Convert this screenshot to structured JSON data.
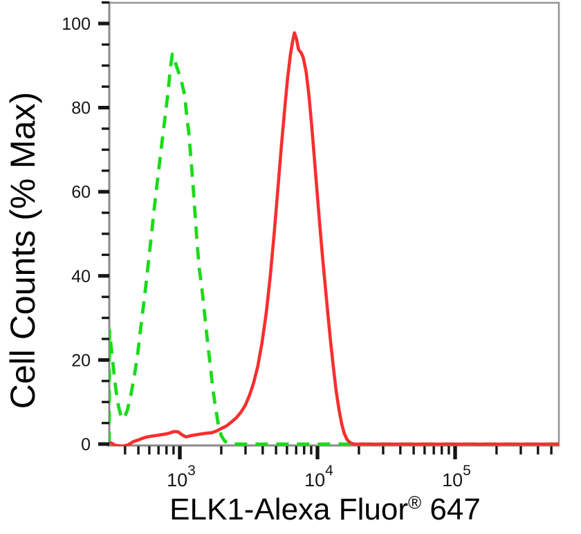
{
  "titles": {
    "y_axis": "Cell Counts (% Max)",
    "x_axis_prefix": "ELK1-Alexa Fluor",
    "x_axis_sup": "®",
    "x_axis_suffix": " 647"
  },
  "colors": {
    "background": "#ffffff",
    "red_curve": "#f82e2e",
    "green_curve": "#1adb1a",
    "axis_line": "#8a8a8a",
    "border": "#949494",
    "tick": "#161616",
    "text": "#000000"
  },
  "y_axis": {
    "major_ticks": [
      0,
      20,
      40,
      60,
      80,
      100
    ],
    "major_tick_labels": [
      "0",
      "20",
      "40",
      "60",
      "80",
      "100"
    ],
    "minor_ticks": [
      5,
      10,
      15,
      25,
      30,
      35,
      45,
      50,
      55,
      65,
      70,
      75,
      85,
      90,
      95,
      105
    ],
    "range": [
      0,
      105
    ]
  },
  "x_axis": {
    "scale": "log10",
    "major_ticks": [
      {
        "value": 1000,
        "base": "10",
        "exponent": "3"
      },
      {
        "value": 10000,
        "base": "10",
        "exponent": "4"
      },
      {
        "value": 100000,
        "base": "10",
        "exponent": "5"
      }
    ],
    "minor_ticks": [
      400,
      500,
      600,
      700,
      800,
      900,
      2000,
      3000,
      4000,
      5000,
      6000,
      7000,
      8000,
      9000,
      20000,
      30000,
      40000,
      50000,
      60000,
      70000,
      80000,
      90000,
      200000,
      300000,
      400000,
      500000
    ],
    "range": [
      310,
      560000
    ]
  },
  "chart_data": {
    "type": "line",
    "title": "",
    "xlabel": "ELK1-Alexa Fluor® 647",
    "ylabel": "Cell Counts (% Max)",
    "x_scale": "log",
    "xlim": [
      310,
      560000
    ],
    "ylim": [
      0,
      105
    ],
    "grid": false,
    "legend": "none",
    "series": [
      {
        "name": "green dashed curve (unstained / control)",
        "style": "dashed",
        "color": "#1adb1a",
        "peak": {
          "x": 880,
          "y": 92.7
        },
        "points": [
          [
            306,
            0
          ],
          [
            308,
            27
          ],
          [
            322,
            21
          ],
          [
            337,
            15
          ],
          [
            353,
            10
          ],
          [
            374,
            6.5
          ],
          [
            392,
            6
          ],
          [
            415,
            8
          ],
          [
            440,
            11.5
          ],
          [
            466,
            16
          ],
          [
            494,
            21.5
          ],
          [
            517,
            27
          ],
          [
            542,
            32.5
          ],
          [
            568,
            38
          ],
          [
            595,
            44
          ],
          [
            623,
            50
          ],
          [
            652,
            56
          ],
          [
            684,
            62
          ],
          [
            716,
            67.5
          ],
          [
            750,
            73
          ],
          [
            786,
            78.5
          ],
          [
            823,
            84
          ],
          [
            851,
            89
          ],
          [
            881,
            92.7
          ],
          [
            922,
            91
          ],
          [
            965,
            89
          ],
          [
            1023,
            86.5
          ],
          [
            1084,
            83
          ],
          [
            1123,
            78
          ],
          [
            1162,
            74
          ],
          [
            1203,
            68
          ],
          [
            1245,
            62
          ],
          [
            1289,
            55
          ],
          [
            1334,
            48
          ],
          [
            1381,
            42
          ],
          [
            1446,
            37
          ],
          [
            1514,
            31
          ],
          [
            1586,
            24.5
          ],
          [
            1660,
            19
          ],
          [
            1738,
            13
          ],
          [
            1820,
            8.5
          ],
          [
            1906,
            4.5
          ],
          [
            2000,
            2
          ],
          [
            2120,
            0.7
          ],
          [
            2290,
            0
          ],
          [
            620000,
            0
          ]
        ]
      },
      {
        "name": "red solid curve (ELK1-Alexa Fluor 647)",
        "style": "solid",
        "color": "#f82e2e",
        "peak": {
          "x": 6800,
          "y": 97.8
        },
        "points": [
          [
            315,
            0.3
          ],
          [
            340,
            -0.3
          ],
          [
            385,
            -0.5
          ],
          [
            420,
            -0.2
          ],
          [
            460,
            0.6
          ],
          [
            500,
            1.0
          ],
          [
            560,
            1.6
          ],
          [
            630,
            1.9
          ],
          [
            725,
            2.2
          ],
          [
            820,
            2.5
          ],
          [
            910,
            3.0
          ],
          [
            975,
            2.9
          ],
          [
            1035,
            2.2
          ],
          [
            1110,
            1.7
          ],
          [
            1200,
            2.0
          ],
          [
            1305,
            2.2
          ],
          [
            1430,
            2.4
          ],
          [
            1570,
            2.6
          ],
          [
            1700,
            2.7
          ],
          [
            1845,
            3.1
          ],
          [
            2000,
            3.7
          ],
          [
            2175,
            4.3
          ],
          [
            2360,
            5.2
          ],
          [
            2565,
            6.2
          ],
          [
            2780,
            7.6
          ],
          [
            2985,
            9.2
          ],
          [
            3200,
            11.5
          ],
          [
            3435,
            14.5
          ],
          [
            3685,
            18.5
          ],
          [
            3950,
            24
          ],
          [
            4240,
            31
          ],
          [
            4545,
            40
          ],
          [
            4875,
            51
          ],
          [
            5165,
            61
          ],
          [
            5470,
            71
          ],
          [
            5795,
            80
          ],
          [
            6065,
            87
          ],
          [
            6350,
            92.5
          ],
          [
            6575,
            95.5
          ],
          [
            6800,
            97.8
          ],
          [
            7040,
            96.3
          ],
          [
            7290,
            93.8
          ],
          [
            7630,
            93.0
          ],
          [
            7900,
            91.8
          ],
          [
            8270,
            88.5
          ],
          [
            8660,
            83
          ],
          [
            9065,
            76
          ],
          [
            9490,
            68
          ],
          [
            9930,
            60
          ],
          [
            10400,
            52
          ],
          [
            10885,
            44.5
          ],
          [
            11395,
            37.5
          ],
          [
            11930,
            30.5
          ],
          [
            12490,
            24
          ],
          [
            13075,
            18
          ],
          [
            13685,
            12.5
          ],
          [
            14330,
            8.2
          ],
          [
            15000,
            4.8
          ],
          [
            15700,
            2.4
          ],
          [
            16440,
            1.0
          ],
          [
            17390,
            0.3
          ],
          [
            18400,
            0
          ],
          [
            620000,
            0
          ]
        ]
      }
    ]
  }
}
